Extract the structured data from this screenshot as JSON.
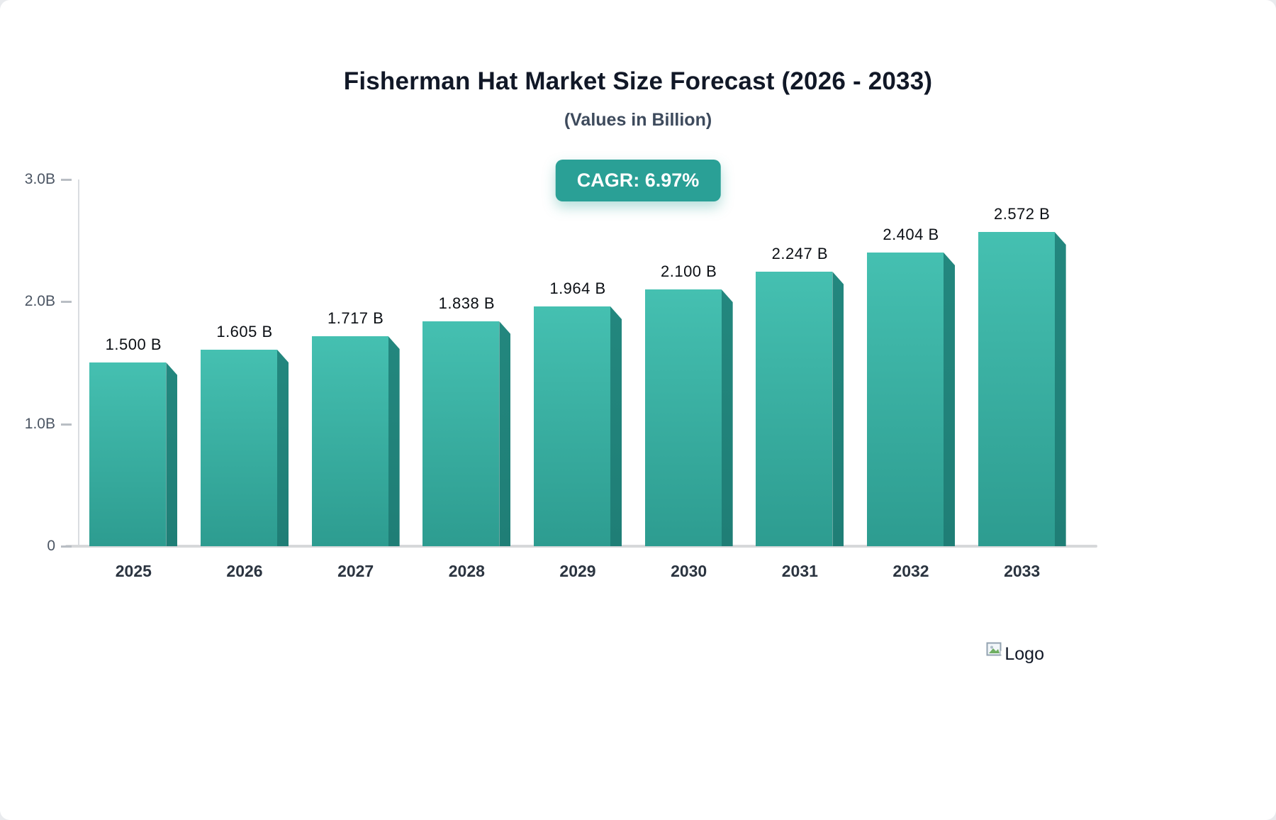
{
  "header": {
    "title": "Fisherman Hat Market Size Forecast (2026 - 2033)",
    "subtitle": "(Values in Billion)"
  },
  "badge": {
    "label": "CAGR: 6.97%"
  },
  "chart_data": {
    "type": "bar",
    "title": "Fisherman Hat Market Size Forecast (2026 - 2033)",
    "subtitle": "(Values in Billion)",
    "categories": [
      "2025",
      "2026",
      "2027",
      "2028",
      "2029",
      "2030",
      "2031",
      "2032",
      "2033"
    ],
    "values": [
      1.5,
      1.605,
      1.717,
      1.838,
      1.964,
      2.1,
      2.247,
      2.404,
      2.572
    ],
    "value_labels": [
      "1.500 B",
      "1.605 B",
      "1.717 B",
      "1.838 B",
      "1.964 B",
      "2.100 B",
      "2.247 B",
      "2.404 B",
      "2.572 B"
    ],
    "xlabel": "",
    "ylabel": "",
    "ylim": [
      0,
      3
    ],
    "yticks": [
      {
        "value": 0,
        "label": "0"
      },
      {
        "value": 1,
        "label": "1.0B"
      },
      {
        "value": 2,
        "label": "2.0B"
      },
      {
        "value": 3,
        "label": "3.0B"
      }
    ],
    "grid": false,
    "legend": false,
    "bar_color_top": "#45c0b1",
    "bar_color_bottom": "#2d9c90",
    "bar_side_color": "#1f7e76",
    "badge_color": "#2aa096"
  },
  "footer": {
    "logo_alt": "Logo"
  }
}
